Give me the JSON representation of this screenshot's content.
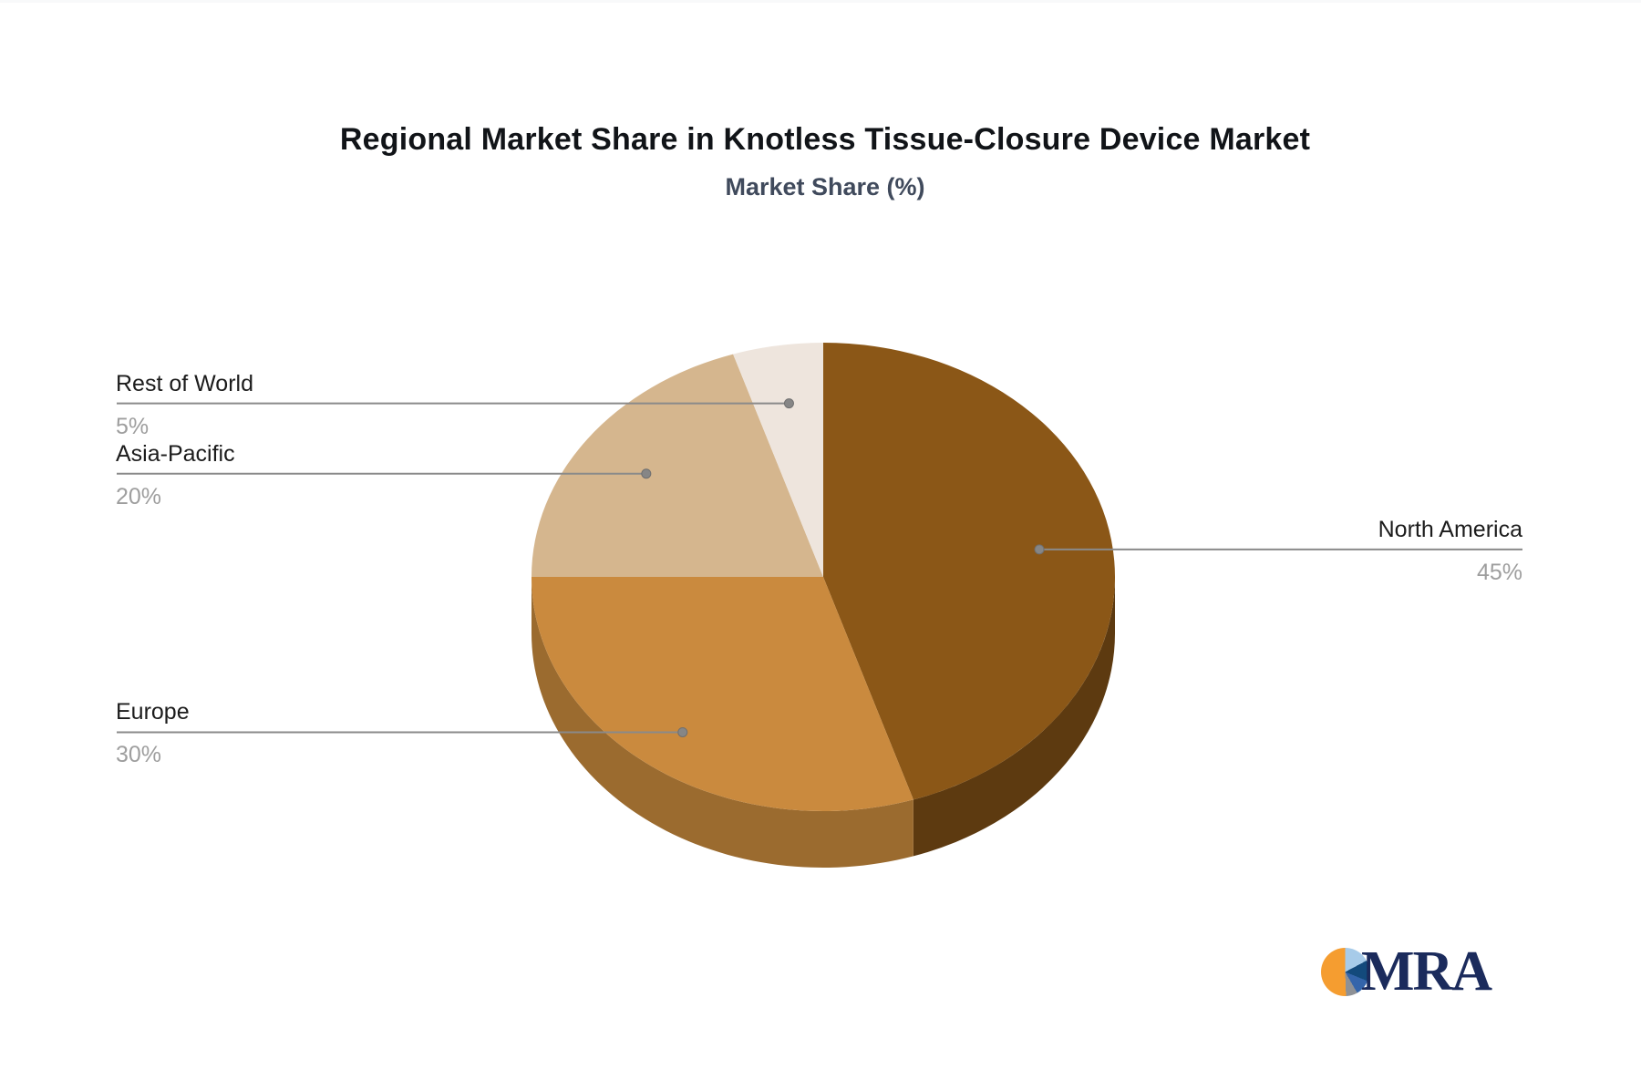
{
  "chart_data": {
    "type": "pie",
    "title": "Regional Market Share in Knotless Tissue-Closure Device Market",
    "subtitle": "Market Share (%)",
    "legend": "none",
    "direction": "clockwise",
    "start_angle_deg": 0,
    "depth_3d": true,
    "value_suffix": "%",
    "label_name_color": "#1c1c1c",
    "label_value_color": "#9e9e9e",
    "leader_line_color": "#8a8a8a",
    "leader_dot_color": "#868686",
    "slices": [
      {
        "label": "North America",
        "value": 45,
        "color": "#8b5717",
        "side_color": "#5d3a10",
        "label_side": "right",
        "leader_r": 0.75
      },
      {
        "label": "Europe",
        "value": 30,
        "color": "#ca8a3e",
        "side_color": "#9b6b2f",
        "label_side": "left",
        "leader_r": 0.82
      },
      {
        "label": "Asia-Pacific",
        "value": 20,
        "color": "#d5b68e",
        "side_color": "#ab8a60",
        "label_side": "left",
        "leader_r": 0.75
      },
      {
        "label": "Rest of World",
        "value": 5,
        "color": "#eee5dd",
        "side_color": "#c3b4a9",
        "label_side": "left",
        "leader_r": 0.75
      }
    ]
  },
  "logo": {
    "text": "MRA",
    "text_color": "#1b2b5c",
    "pie_segments": [
      {
        "color": "#a7cbe9",
        "from": 0,
        "to": 62
      },
      {
        "color": "#134a7c",
        "from": 62,
        "to": 112
      },
      {
        "color": "#3465ab",
        "from": 112,
        "to": 150
      },
      {
        "color": "#8e9196",
        "from": 150,
        "to": 178
      },
      {
        "color": "#f59d30",
        "from": 178,
        "to": 360
      }
    ]
  }
}
